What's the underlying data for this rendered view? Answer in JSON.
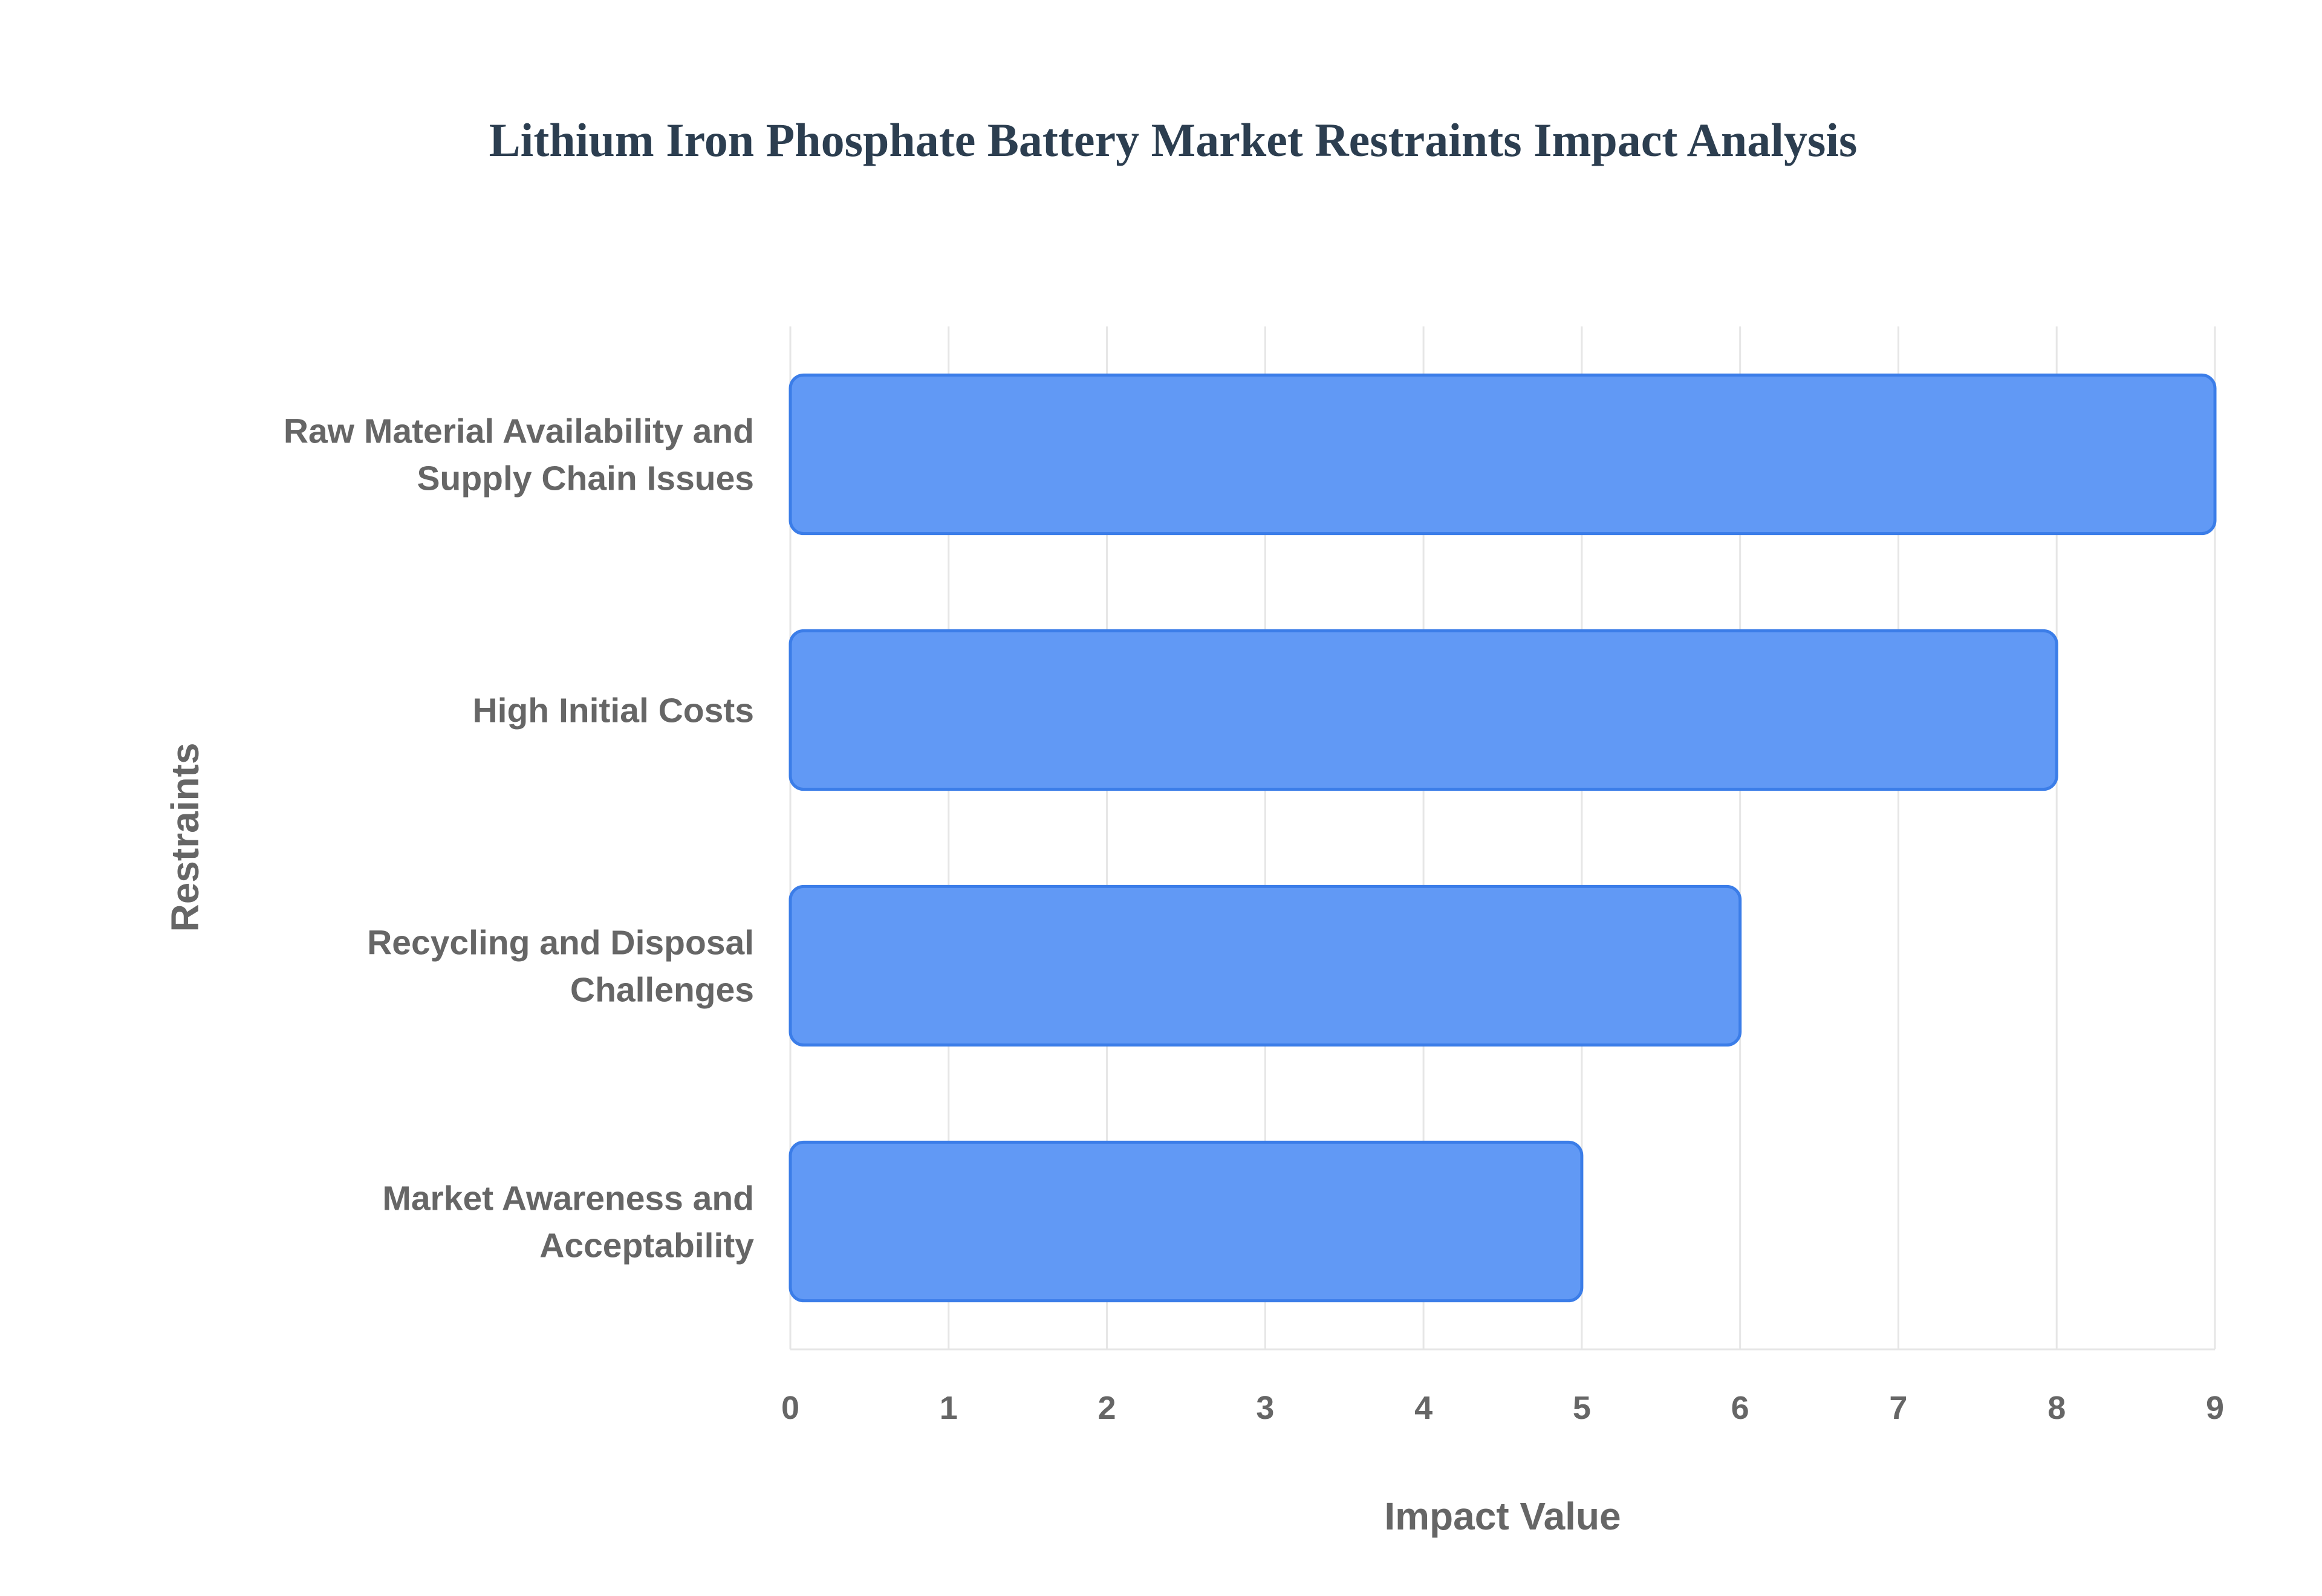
{
  "chart_data": {
    "type": "bar",
    "orientation": "horizontal",
    "title": "Lithium Iron Phosphate Battery Market Restraints Impact Analysis",
    "xlabel": "Impact Value",
    "ylabel": "Restraints",
    "xlim": [
      0,
      9
    ],
    "x_ticks": [
      "0",
      "1",
      "2",
      "3",
      "4",
      "5",
      "6",
      "7",
      "8",
      "9"
    ],
    "grid": true,
    "legend": "none",
    "categories": [
      [
        "Raw Material Availability and",
        "Supply Chain Issues"
      ],
      [
        "High Initial Costs"
      ],
      [
        "Recycling and Disposal",
        "Challenges"
      ],
      [
        "Market Awareness and",
        "Acceptability"
      ]
    ],
    "values": [
      9,
      8,
      6,
      5
    ],
    "colors": {
      "bar_fill": "#6199f5",
      "bar_stroke": "#3b7de8",
      "title": "#2c3e50",
      "axis_text": "#666666",
      "grid": "#e6e6e6",
      "background": "#ffffff"
    }
  }
}
